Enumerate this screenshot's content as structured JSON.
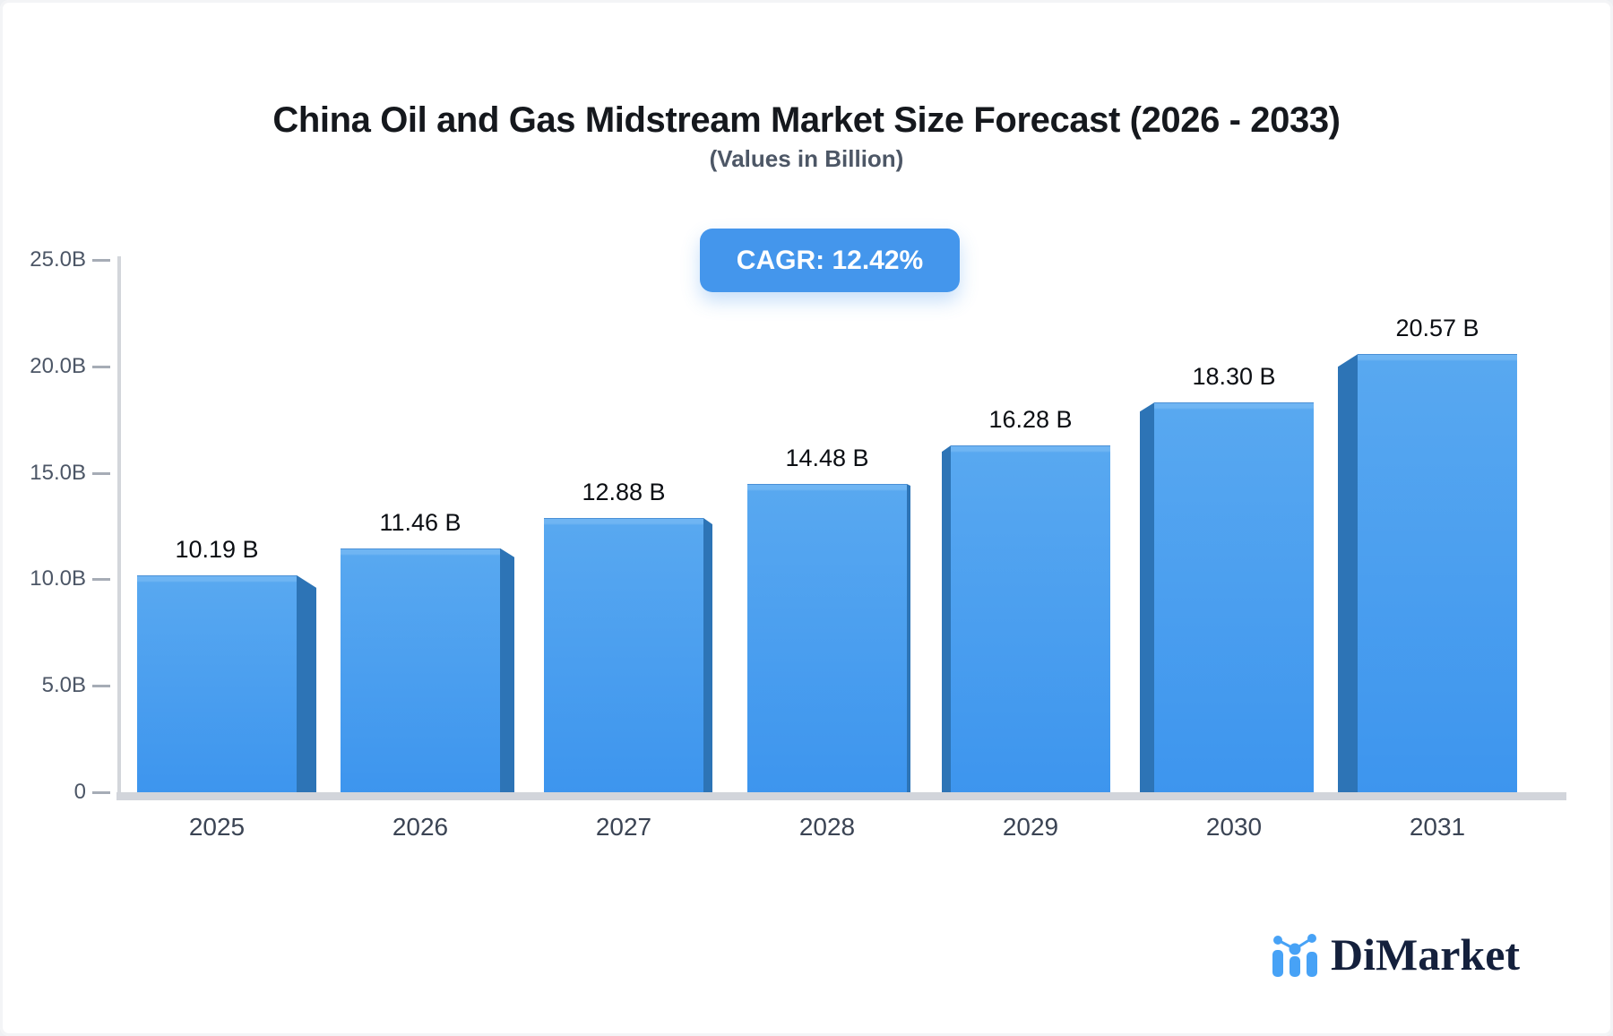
{
  "header": {
    "title": "China Oil and Gas Midstream Market Size Forecast (2026 - 2033)",
    "subtitle": "(Values in Billion)"
  },
  "badge": {
    "label": "CAGR: 12.42%"
  },
  "chart_data": {
    "type": "bar",
    "title": "China Oil and Gas Midstream Market Size Forecast (2026 - 2033)",
    "subtitle": "(Values in Billion)",
    "categories": [
      "2025",
      "2026",
      "2027",
      "2028",
      "2029",
      "2030",
      "2031"
    ],
    "values": [
      10.19,
      11.46,
      12.88,
      14.48,
      16.28,
      18.3,
      20.57
    ],
    "value_labels": [
      "10.19 B",
      "11.46 B",
      "12.88 B",
      "14.48 B",
      "16.28 B",
      "18.30 B",
      "20.57 B"
    ],
    "annotations": [
      "CAGR: 12.42%"
    ],
    "xlabel": "",
    "ylabel": "",
    "ylim": [
      0,
      25
    ],
    "grid": false,
    "legend": false,
    "y_ticks": [
      {
        "label": "25.0B",
        "value": 25
      },
      {
        "label": "20.0B",
        "value": 20
      },
      {
        "label": "15.0B",
        "value": 15
      },
      {
        "label": "10.0B",
        "value": 10
      },
      {
        "label": "5.0B",
        "value": 5
      },
      {
        "label": "0",
        "value": 0
      }
    ]
  },
  "colors": {
    "bar_face_top": "#58a8f0",
    "bar_face_bottom": "#3d95ee",
    "bar_face_highlight": "#6fb5f3",
    "bar_side": "#2d74b6",
    "axis": "#d3d6db",
    "badge_bg": "#4496ec",
    "logo_blue": "#47a2f6"
  },
  "logo": {
    "text": "DiMarket"
  }
}
